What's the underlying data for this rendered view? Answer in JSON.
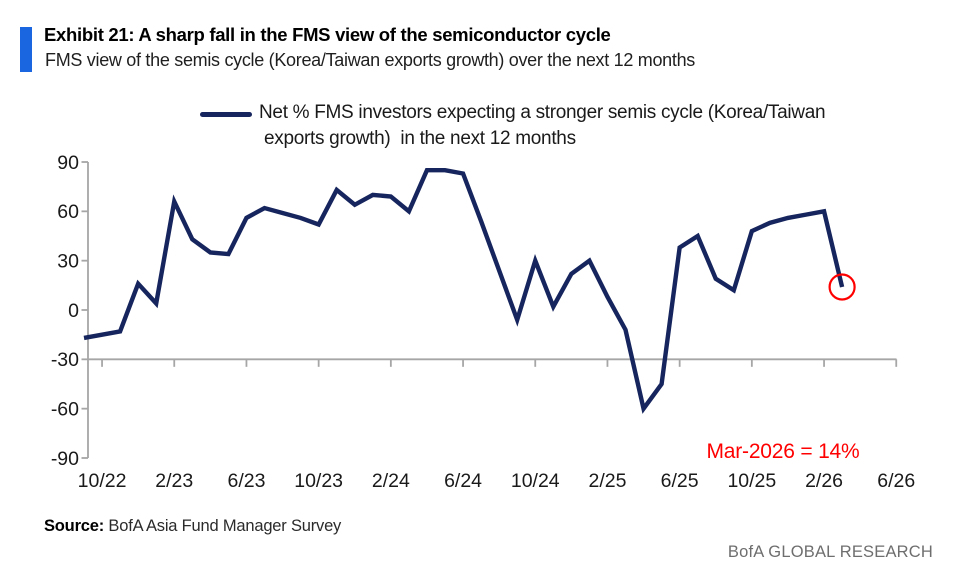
{
  "header": {
    "exhibit_title": "Exhibit 21: A sharp fall in the FMS view of the semiconductor cycle",
    "subtitle": "FMS view of the semis cycle (Korea/Taiwan exports growth) over the next 12 months",
    "accent_color": "#1966E0"
  },
  "chart_data": {
    "type": "line",
    "legend": {
      "line1": "Net % FMS investors expecting a stronger semis cycle (Korea/Taiwan",
      "line2": "exports growth)  in the next 12 months",
      "full_label": "Net % FMS investors expecting a stronger semis cycle (Korea/Taiwan exports growth) in the next 12 months",
      "position": "top"
    },
    "series": [
      {
        "name": "Net % FMS investors expecting a stronger semis cycle (Korea/Taiwan exports growth) in the next 12 months",
        "color": "#16255D",
        "months": [
          "Sep-22",
          "Oct-22",
          "Nov-22",
          "Dec-22",
          "Jan-23",
          "Feb-23",
          "Mar-23",
          "Apr-23",
          "May-23",
          "Jun-23",
          "Jul-23",
          "Aug-23",
          "Sep-23",
          "Oct-23",
          "Nov-23",
          "Dec-23",
          "Jan-24",
          "Feb-24",
          "Mar-24",
          "Apr-24",
          "May-24",
          "Jun-24",
          "Jul-24",
          "Aug-24",
          "Sep-24",
          "Oct-24",
          "Nov-24",
          "Dec-24",
          "Jan-25",
          "Feb-25",
          "Mar-25",
          "Apr-25",
          "May-25",
          "Jun-25",
          "Jul-25",
          "Aug-25",
          "Sep-25",
          "Oct-25",
          "Nov-25",
          "Dec-25",
          "Jan-26",
          "Feb-26",
          "Mar-26"
        ],
        "values": [
          -17,
          -15,
          -13,
          16,
          4,
          66,
          43,
          35,
          34,
          56,
          62,
          59,
          56,
          52,
          73,
          64,
          70,
          69,
          60,
          85,
          85,
          83,
          54,
          24,
          -6,
          30,
          2,
          22,
          30,
          8,
          -12,
          -60,
          -45,
          38,
          45,
          19,
          12,
          48,
          53,
          56,
          58,
          60,
          14
        ]
      }
    ],
    "x_tick_labels": [
      "10/22",
      "2/23",
      "6/23",
      "10/23",
      "2/24",
      "6/24",
      "10/24",
      "2/25",
      "6/25",
      "10/25",
      "2/26",
      "6/26"
    ],
    "y_ticks": [
      90,
      60,
      30,
      0,
      -30,
      -60,
      -90
    ],
    "ylim": [
      -90,
      90
    ],
    "baseline_value": -30,
    "grid": false,
    "axis_color": "#A6A6A6",
    "label_color": "#1a1a1a",
    "annotation": {
      "text": "Mar-2026 = 14%",
      "color": "#FF0000",
      "highlight_month": "Mar-26",
      "highlight_value": 14
    }
  },
  "footer": {
    "source_label": "Source:",
    "source_text": " BofA Asia Fund Manager Survey",
    "brand": "BofA GLOBAL RESEARCH"
  }
}
